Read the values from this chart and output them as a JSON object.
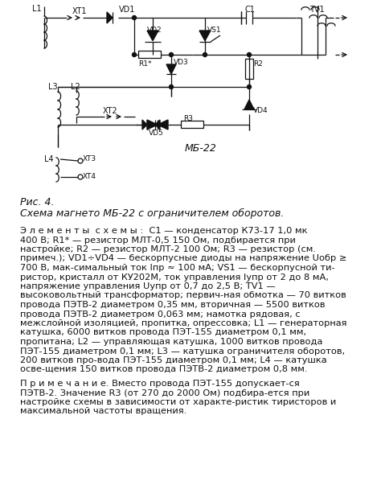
{
  "background_color": "#ffffff",
  "fig_caption_line1": "Рис. 4.",
  "fig_caption_line2": "Схема магнето МБ-22 с ограничителем оборотов.",
  "elements_header": "Э л е м е н т ы  с х е м ы:",
  "elements_text": "С1 — конденсатор К73-17 1,0 мк 400 В; R1* — резистор МЛТ-0,5 150 Ом, подбирается при настройке; R2 — резистор МЛТ-2 100 Ом; R3 — резистор (см. примеч.); VD1÷VD4 — бескорпусные диоды на напряжение Uобр ≥ 700 В, максимальный ток Iпр ≈ 100 мА; VS1 — бескорпусной тиристор, кристалл от КУ202М, ток управления Iупр от 2 до 8 мА, напряжение управления Uупр от 0,7 до 2,5 В; TV1 — высоковольтный трансформатор; первичная обмотка — 70 витков провода ПЭТВ-2 диаметром 0,35 мм, вторичная — 5500 витков провода ПЭТВ-2 диаметром 0,063 мм; намотка рядовая, с межслойной изоляцией, пропитка, опрессовка; L1 — генераторная катушка, 6000 витков провода ПЭТ-155 диаметром 0,1 мм, пропитана; L2 — управляющая катушка, 1000 витков провода ПЭТ-155 диаметром 0,1 мм; L3 — катушка ограничителя оборотов, 200 витков провода ПЭТ-155 диаметром 0,1 мм; L4 — катушка освещения 150 витков провода ПЭТВ-2 диаметром 0,8 мм.",
  "note_header": "П р и м е ч а н и е.",
  "note_text": "Вместо провода ПЭТ-155 допускается ПЭТВ-2. Значение R3 (от 270 до 2000 Ом) подбирается при настройке схемы в зависимости от характеристик тиристоров и максимальной частоты вращения.",
  "font_size_main": 8.5,
  "font_size_caption": 9.5,
  "text_color": "#000000"
}
